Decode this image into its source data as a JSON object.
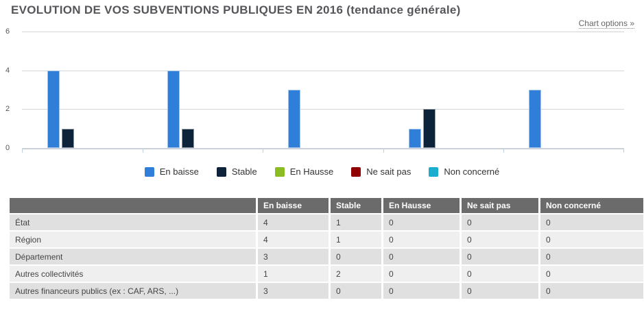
{
  "title": "EVOLUTION DE VOS SUBVENTIONS PUBLIQUES EN 2016 (tendance générale)",
  "chart_options_label": "Chart options »",
  "colors": {
    "en_baisse": "#2f7ed8",
    "stable": "#0d233a",
    "en_hausse": "#8bbc21",
    "ne_sait_pas": "#910000",
    "non_concerne": "#1aadce",
    "gridline": "#d4d4d4",
    "axis": "#c0d0e0",
    "table_header_bg": "#6b6b6b",
    "row_dark": "#e0e0e0",
    "row_light": "#efefef"
  },
  "chart_data": {
    "type": "bar",
    "title": "",
    "xlabel": "",
    "ylabel": "",
    "categories": [
      "État",
      "Région",
      "Département",
      "Autres collectivités",
      "Autres financeurs publics (ex : CAF, ARS, ...)"
    ],
    "series": [
      {
        "name": "En baisse",
        "color": "#2f7ed8",
        "values": [
          4,
          4,
          3,
          1,
          3
        ]
      },
      {
        "name": "Stable",
        "color": "#0d233a",
        "values": [
          1,
          1,
          0,
          2,
          0
        ]
      },
      {
        "name": "En Hausse",
        "color": "#8bbc21",
        "values": [
          0,
          0,
          0,
          0,
          0
        ]
      },
      {
        "name": "Ne sait pas",
        "color": "#910000",
        "values": [
          0,
          0,
          0,
          0,
          0
        ]
      },
      {
        "name": "Non concerné",
        "color": "#1aadce",
        "values": [
          0,
          0,
          0,
          0,
          0
        ]
      }
    ],
    "ylim": [
      0,
      6
    ],
    "yticks": [
      6,
      4,
      2,
      0
    ],
    "grid": true,
    "legend_position": "bottom",
    "x_tick_labels_shown": false
  },
  "table": {
    "headers": [
      "",
      "En baisse",
      "Stable",
      "En Hausse",
      "Ne sait pas",
      "Non concerné"
    ],
    "rows": [
      {
        "label": "État",
        "values": [
          4,
          1,
          0,
          0,
          0
        ]
      },
      {
        "label": "Région",
        "values": [
          4,
          1,
          0,
          0,
          0
        ]
      },
      {
        "label": "Département",
        "values": [
          3,
          0,
          0,
          0,
          0
        ]
      },
      {
        "label": "Autres collectivités",
        "values": [
          1,
          2,
          0,
          0,
          0
        ]
      },
      {
        "label": "Autres financeurs publics (ex : CAF, ARS, ...)",
        "values": [
          3,
          0,
          0,
          0,
          0
        ]
      }
    ]
  }
}
